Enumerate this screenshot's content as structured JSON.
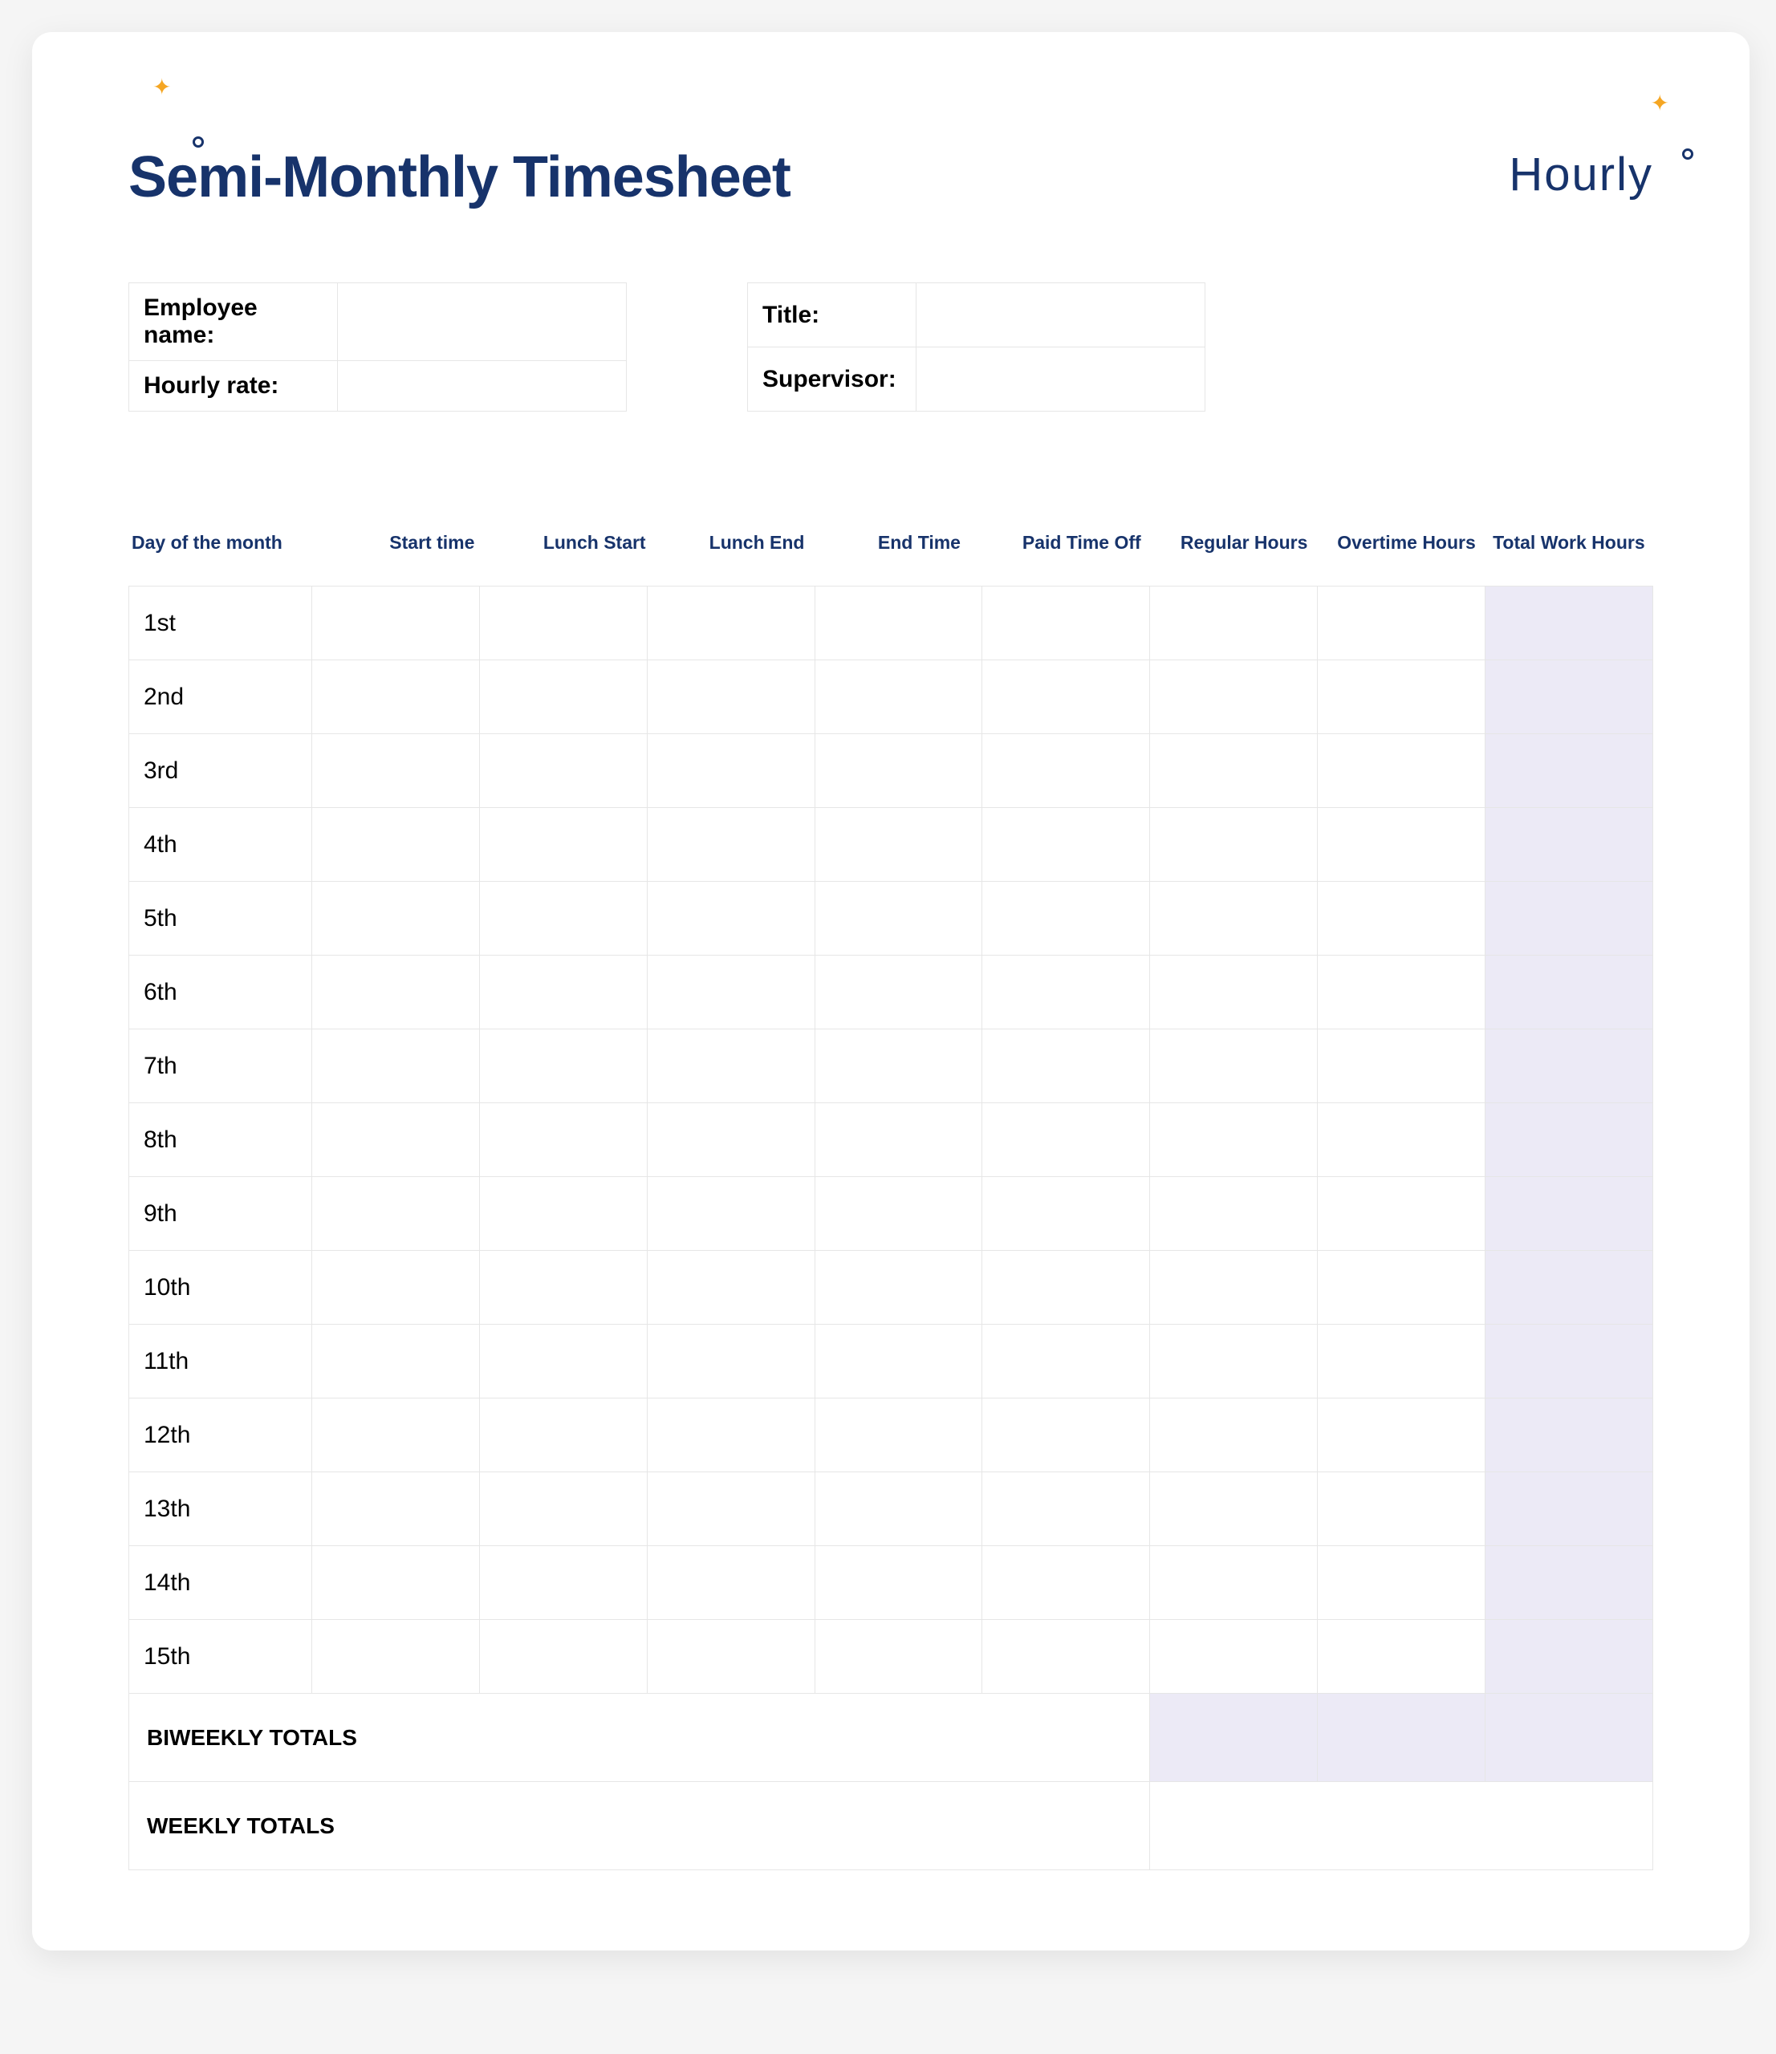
{
  "colors": {
    "brand_navy": "#17336b",
    "accent_orange": "#f5a623",
    "border_gray": "#e6e6e6",
    "shade_lavender": "#eceaf6",
    "page_bg": "#ffffff"
  },
  "header": {
    "title": "Semi-Monthly Timesheet",
    "logo_text": "Hourly"
  },
  "meta": {
    "left": [
      {
        "label": "Employee name:",
        "value": ""
      },
      {
        "label": "Hourly rate:",
        "value": ""
      }
    ],
    "right": [
      {
        "label": "Title:",
        "value": ""
      },
      {
        "label": "Supervisor:",
        "value": ""
      }
    ]
  },
  "columns": [
    "Day of the month",
    "Start time",
    "Lunch Start",
    "Lunch End",
    "End Time",
    "Paid Time Off",
    "Regular Hours",
    "Overtime Hours",
    "Total Work Hours"
  ],
  "days": [
    "1st",
    "2nd",
    "3rd",
    "4th",
    "5th",
    "6th",
    "7th",
    "8th",
    "9th",
    "10th",
    "11th",
    "12th",
    "13th",
    "14th",
    "15th"
  ],
  "totals": {
    "biweekly_label": "BIWEEKLY TOTALS",
    "weekly_label": "WEEKLY TOTALS"
  }
}
